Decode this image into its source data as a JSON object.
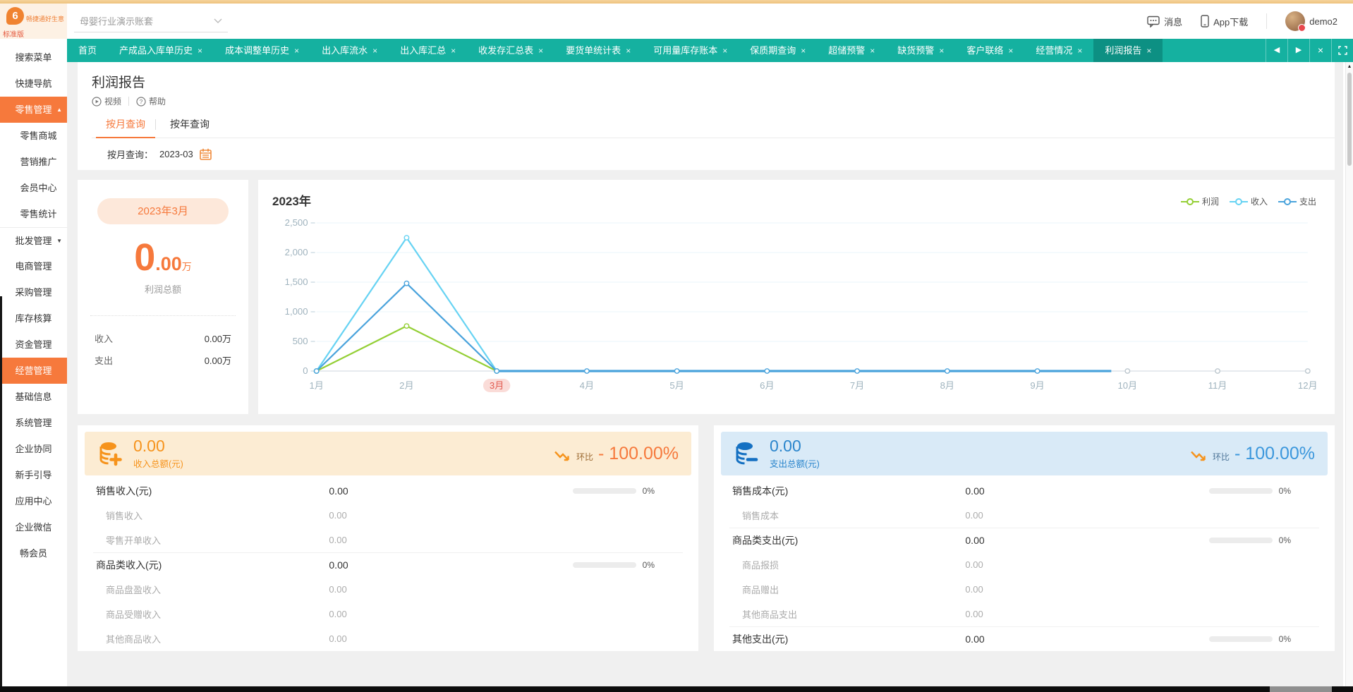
{
  "brand": {
    "name": "畅捷通好生意",
    "edition": "标准版",
    "logo_glyph": "6"
  },
  "topbar": {
    "account_placeholder": "母婴行业演示账套",
    "messages_label": "消息",
    "app_download_label": "App下载",
    "username": "demo2"
  },
  "tabbar": {
    "tabs": [
      {
        "label": "首页",
        "closable": false,
        "active": false
      },
      {
        "label": "产成品入库单历史",
        "closable": true,
        "active": false
      },
      {
        "label": "成本调整单历史",
        "closable": true,
        "active": false
      },
      {
        "label": "出入库流水",
        "closable": true,
        "active": false
      },
      {
        "label": "出入库汇总",
        "closable": true,
        "active": false
      },
      {
        "label": "收发存汇总表",
        "closable": true,
        "active": false
      },
      {
        "label": "要货单统计表",
        "closable": true,
        "active": false
      },
      {
        "label": "可用量库存账本",
        "closable": true,
        "active": false
      },
      {
        "label": "保质期查询",
        "closable": true,
        "active": false
      },
      {
        "label": "超储预警",
        "closable": true,
        "active": false
      },
      {
        "label": "缺货预警",
        "closable": true,
        "active": false
      },
      {
        "label": "客户联络",
        "closable": true,
        "active": false
      },
      {
        "label": "经营情况",
        "closable": true,
        "active": false
      },
      {
        "label": "利润报告",
        "closable": true,
        "active": true
      }
    ]
  },
  "sidebar": {
    "items": [
      {
        "label": "搜索菜单"
      },
      {
        "label": "快捷导航"
      },
      {
        "label": "零售管理",
        "active": true,
        "arrow": "up"
      },
      {
        "label": "零售商城",
        "sub": true
      },
      {
        "label": "营销推广",
        "sub": true
      },
      {
        "label": "会员中心",
        "sub": true
      },
      {
        "label": "零售统计",
        "sub": true
      },
      {
        "label": "批发管理",
        "arrow": "down",
        "sep": true
      },
      {
        "label": "电商管理"
      },
      {
        "label": "采购管理"
      },
      {
        "label": "库存核算"
      },
      {
        "label": "资金管理"
      },
      {
        "label": "经营管理",
        "active": true
      },
      {
        "label": "基础信息"
      },
      {
        "label": "系统管理"
      },
      {
        "label": "企业协同"
      },
      {
        "label": "新手引导"
      },
      {
        "label": "应用中心"
      },
      {
        "label": "企业微信"
      },
      {
        "label": "畅会员"
      }
    ]
  },
  "page": {
    "title": "利润报告",
    "video_label": "视频",
    "help_label": "帮助",
    "query_tabs": [
      {
        "label": "按月查询",
        "active": true
      },
      {
        "label": "按年查询",
        "active": false
      }
    ],
    "filter_label": "按月查询：",
    "filter_value": "2023-03"
  },
  "summary": {
    "period": "2023年3月",
    "total_integer": "0",
    "total_decimal": ".00",
    "total_unit": "万",
    "total_caption": "利润总额",
    "rows": [
      {
        "label": "收入",
        "value": "0.00万"
      },
      {
        "label": "支出",
        "value": "0.00万"
      }
    ]
  },
  "chart_data": {
    "type": "line",
    "title": "2023年",
    "categories": [
      "1月",
      "2月",
      "3月",
      "4月",
      "5月",
      "6月",
      "7月",
      "8月",
      "9月",
      "10月",
      "11月",
      "12月"
    ],
    "series": [
      {
        "name": "利润",
        "color": "#94cf35",
        "values": [
          0,
          760,
          0
        ]
      },
      {
        "name": "收入",
        "color": "#67d3f3",
        "values": [
          0,
          2250,
          0
        ]
      },
      {
        "name": "支出",
        "color": "#4aa3dc",
        "values": [
          0,
          1480,
          0,
          0,
          0,
          0,
          0,
          0,
          0
        ]
      }
    ],
    "ylim": [
      0,
      2500
    ],
    "ytick": 500,
    "highlight_category": "3月",
    "highlight_color": "#e25b50",
    "legend_position": "top-right",
    "grid": true
  },
  "stat_cards": [
    {
      "theme": "orange",
      "total": "0.00",
      "caption": "收入总额(元)",
      "ratio_label": "环比",
      "ratio_value": "- 100.00%",
      "groups": [
        {
          "title": "销售收入(元)",
          "value": "0.00",
          "percent": "0%",
          "children": [
            {
              "label": "销售收入",
              "value": "0.00"
            },
            {
              "label": "零售开单收入",
              "value": "0.00"
            }
          ]
        },
        {
          "title": "商品类收入(元)",
          "value": "0.00",
          "percent": "0%",
          "children": [
            {
              "label": "商品盘盈收入",
              "value": "0.00"
            },
            {
              "label": "商品受赠收入",
              "value": "0.00"
            },
            {
              "label": "其他商品收入",
              "value": "0.00"
            }
          ]
        }
      ]
    },
    {
      "theme": "blue",
      "total": "0.00",
      "caption": "支出总额(元)",
      "ratio_label": "环比",
      "ratio_value": "- 100.00%",
      "groups": [
        {
          "title": "销售成本(元)",
          "value": "0.00",
          "percent": "0%",
          "children": [
            {
              "label": "销售成本",
              "value": "0.00"
            }
          ]
        },
        {
          "title": "商品类支出(元)",
          "value": "0.00",
          "percent": "0%",
          "children": [
            {
              "label": "商品报损",
              "value": "0.00"
            },
            {
              "label": "商品赠出",
              "value": "0.00"
            },
            {
              "label": "其他商品支出",
              "value": "0.00"
            }
          ]
        },
        {
          "title": "其他支出(元)",
          "value": "0.00",
          "percent": "0%",
          "children": []
        }
      ]
    }
  ]
}
